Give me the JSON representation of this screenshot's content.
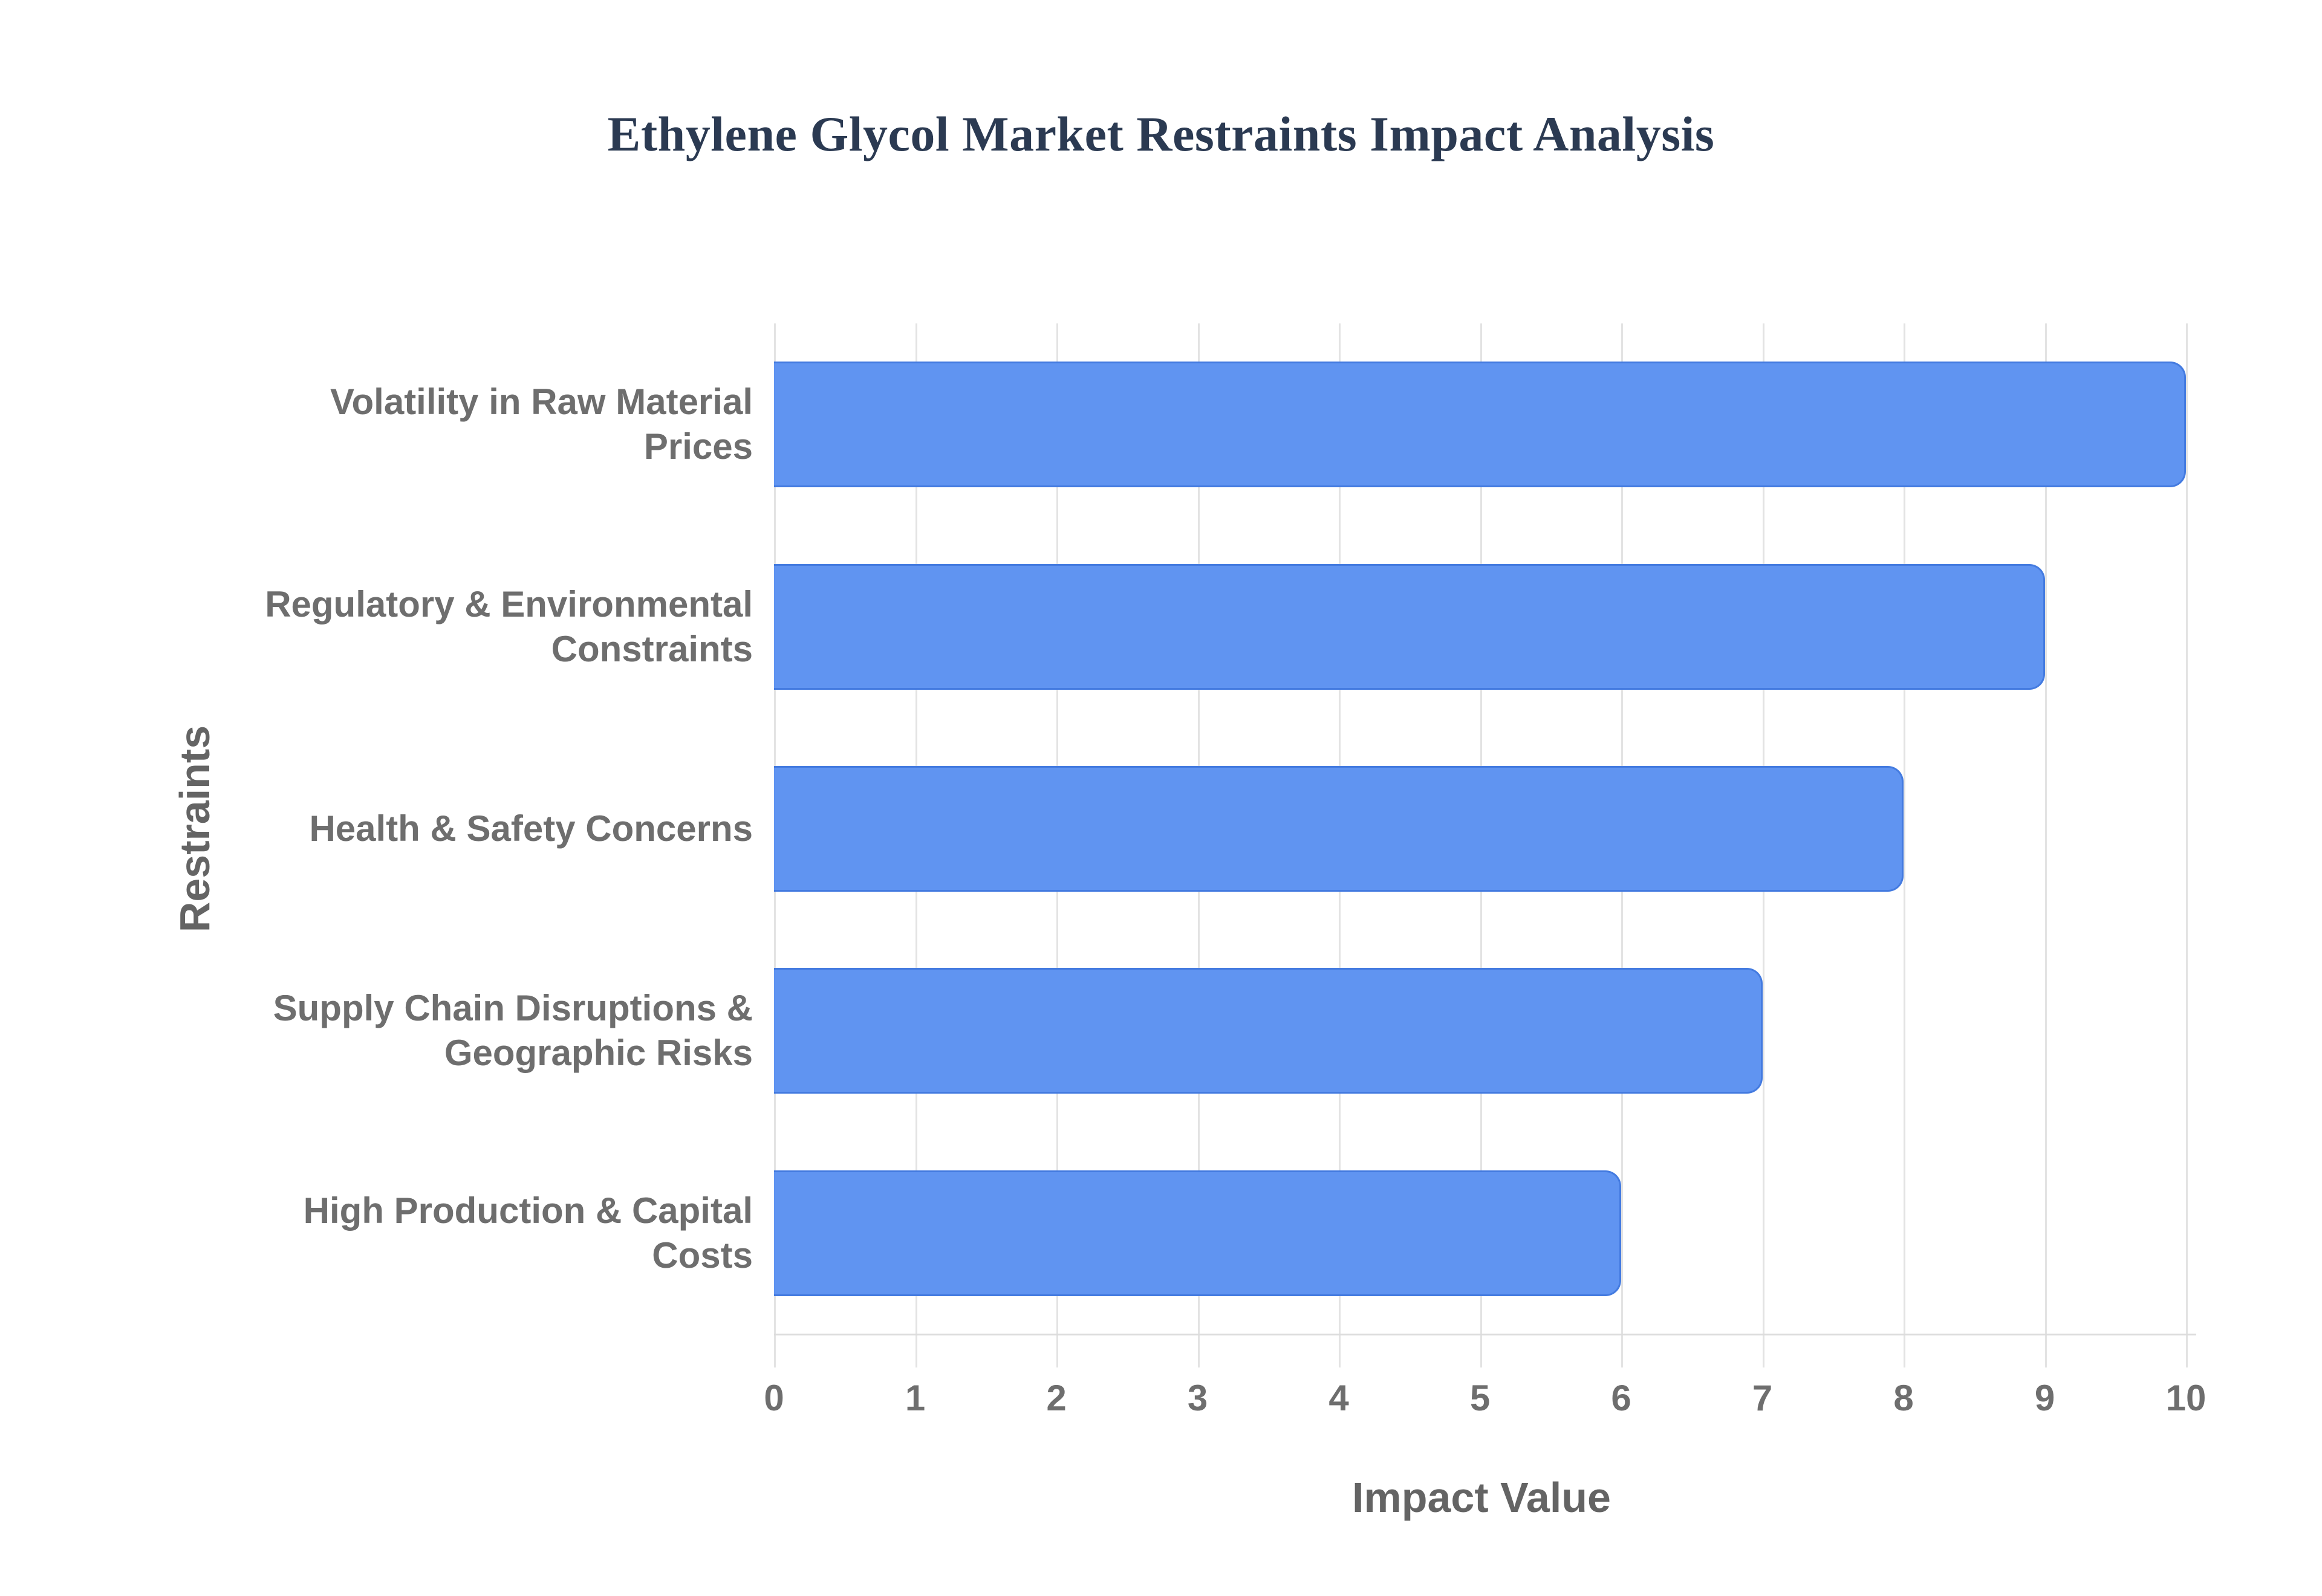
{
  "page": {
    "background": "#ffffff"
  },
  "chart_data": {
    "type": "bar",
    "orientation": "horizontal",
    "title": "Ethylene Glycol Market Restraints Impact Analysis",
    "xlabel": "Impact Value",
    "ylabel": "Restraints",
    "categories": [
      "Volatility in Raw Material Prices",
      "Regulatory & Environmental Constraints",
      "Health & Safety Concerns",
      "Supply Chain Disruptions & Geographic Risks",
      "High Production & Capital Costs"
    ],
    "values": [
      10,
      9,
      8,
      7,
      6
    ],
    "xlim": [
      0,
      10
    ],
    "xticks": [
      0,
      1,
      2,
      3,
      4,
      5,
      6,
      7,
      8,
      9,
      10
    ],
    "grid": "vertical-gridlines-on",
    "legend": "none",
    "colors": {
      "bar_fill": "#6094f1",
      "bar_border": "#447be0",
      "title_text": "#2b3a52",
      "label_text": "#6e6e6e",
      "axis_title_text": "#646464",
      "gridline": "#e3e3e3",
      "axis_line": "#dcdcdc"
    }
  }
}
